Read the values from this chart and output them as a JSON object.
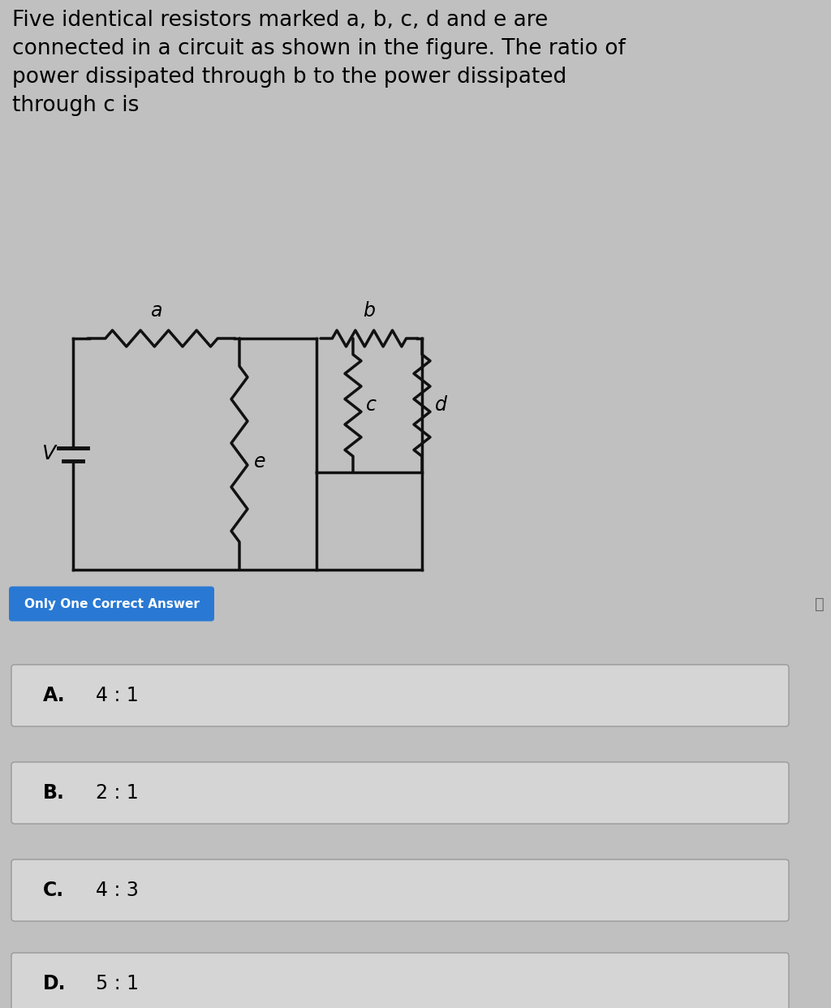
{
  "title_text": "Five identical resistors marked a, b, c, d and e are\nconnected in a circuit as shown in the figure. The ratio of\npower dissipated through b to the power dissipated\nthrough c is",
  "title_fontsize": 19,
  "bg_color": "#c0c0c0",
  "circuit_line_color": "#111111",
  "button_color": "#2979d4",
  "button_text": "Only One Correct Answer",
  "option_fontsize": 17,
  "option_labels": [
    "A.",
    "B.",
    "C.",
    "D."
  ],
  "option_values": [
    "4 : 1",
    "2 : 1",
    "4 : 3",
    "5 : 1"
  ]
}
